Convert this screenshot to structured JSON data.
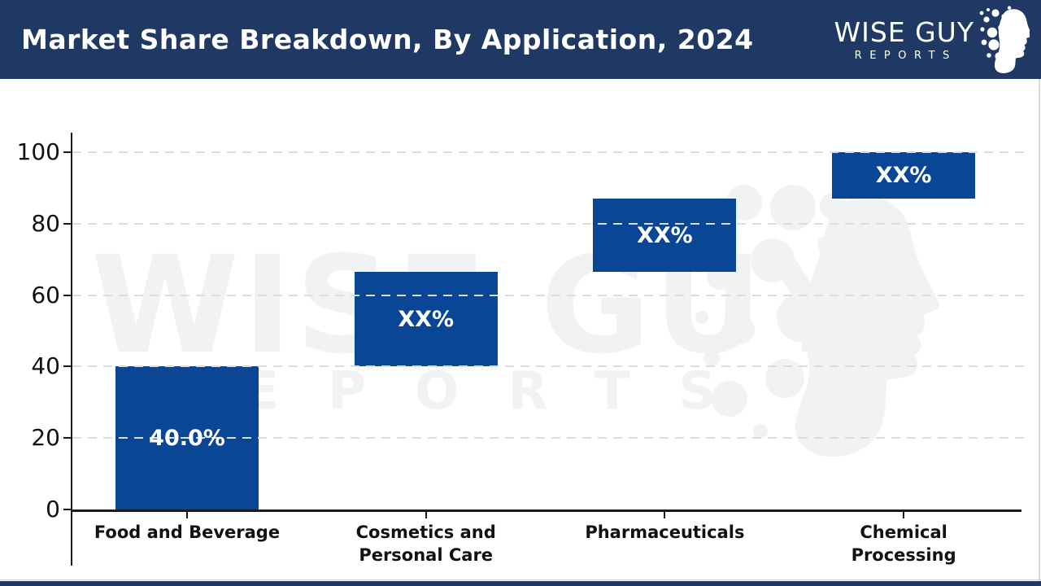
{
  "header": {
    "title": "Market Share Breakdown, By Application, 2024",
    "logo": {
      "name": "WISE GUY",
      "subname": "REPORTS"
    }
  },
  "watermark": {
    "name": "WISE GUY",
    "subname": "REPORTS"
  },
  "colors": {
    "navy": "#203864",
    "bar_blue": "#0a4696",
    "gridline": "#dcdcdc",
    "watermark_gray": "#f1f2f4",
    "axis_black": "#1a1a1a",
    "value_label_white": "#ffffff"
  },
  "chart_data": {
    "type": "bar",
    "subtype": "waterfall",
    "title": "Market Share Breakdown, By Application, 2024",
    "categories": [
      "Food and Beverage",
      "Cosmetics and\nPersonal Care",
      "Pharmaceuticals",
      "Chemical\nProcessing"
    ],
    "segments": [
      {
        "category": "Food and Beverage",
        "start": 0,
        "end": 40,
        "label": "40.0%"
      },
      {
        "category": "Cosmetics and Personal Care",
        "start": 40,
        "end": 66.5,
        "label": "XX%"
      },
      {
        "category": "Pharmaceuticals",
        "start": 66.5,
        "end": 87,
        "label": "XX%"
      },
      {
        "category": "Chemical Processing",
        "start": 87,
        "end": 100,
        "label": "XX%"
      }
    ],
    "yticks": [
      0,
      20,
      40,
      60,
      80,
      100
    ],
    "ylim": [
      0,
      105
    ],
    "xlabel": "",
    "ylabel": "",
    "grid": true,
    "legend": "none",
    "bar_color": "#0a4696",
    "value_label_color": "#ffffff"
  }
}
